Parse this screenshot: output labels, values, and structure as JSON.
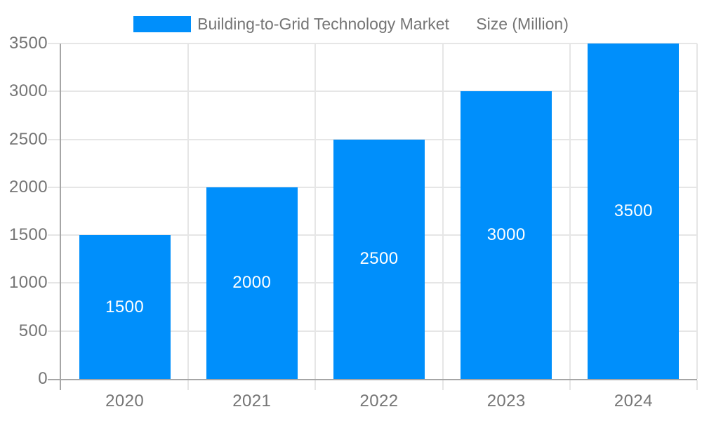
{
  "chart_data": {
    "type": "bar",
    "title": "",
    "legend": {
      "label": "Building-to-Grid Technology Market      Size (Million)",
      "position": "top-center",
      "swatch_color": "#008FFB"
    },
    "categories": [
      "2020",
      "2021",
      "2022",
      "2023",
      "2024"
    ],
    "series": [
      {
        "name": "Building-to-Grid Technology Market Size (Million)",
        "values": [
          1500,
          2000,
          2500,
          3000,
          3500
        ]
      }
    ],
    "bar_value_labels": [
      "1500",
      "2000",
      "2500",
      "3000",
      "3500"
    ],
    "xlabel": "",
    "ylabel": "",
    "ylim": [
      0,
      3500
    ],
    "y_ticks": [
      0,
      500,
      1000,
      1500,
      2000,
      2500,
      3000,
      3500
    ],
    "grid": true,
    "colors": {
      "bar_fill": "#008FFB",
      "bar_label_text": "#FFFFFF",
      "axis_label_text": "#757575",
      "legend_text": "#757575",
      "axis_line": "#A6A6A6",
      "gridline": "#E6E6E6",
      "background": "#FFFFFF"
    }
  }
}
